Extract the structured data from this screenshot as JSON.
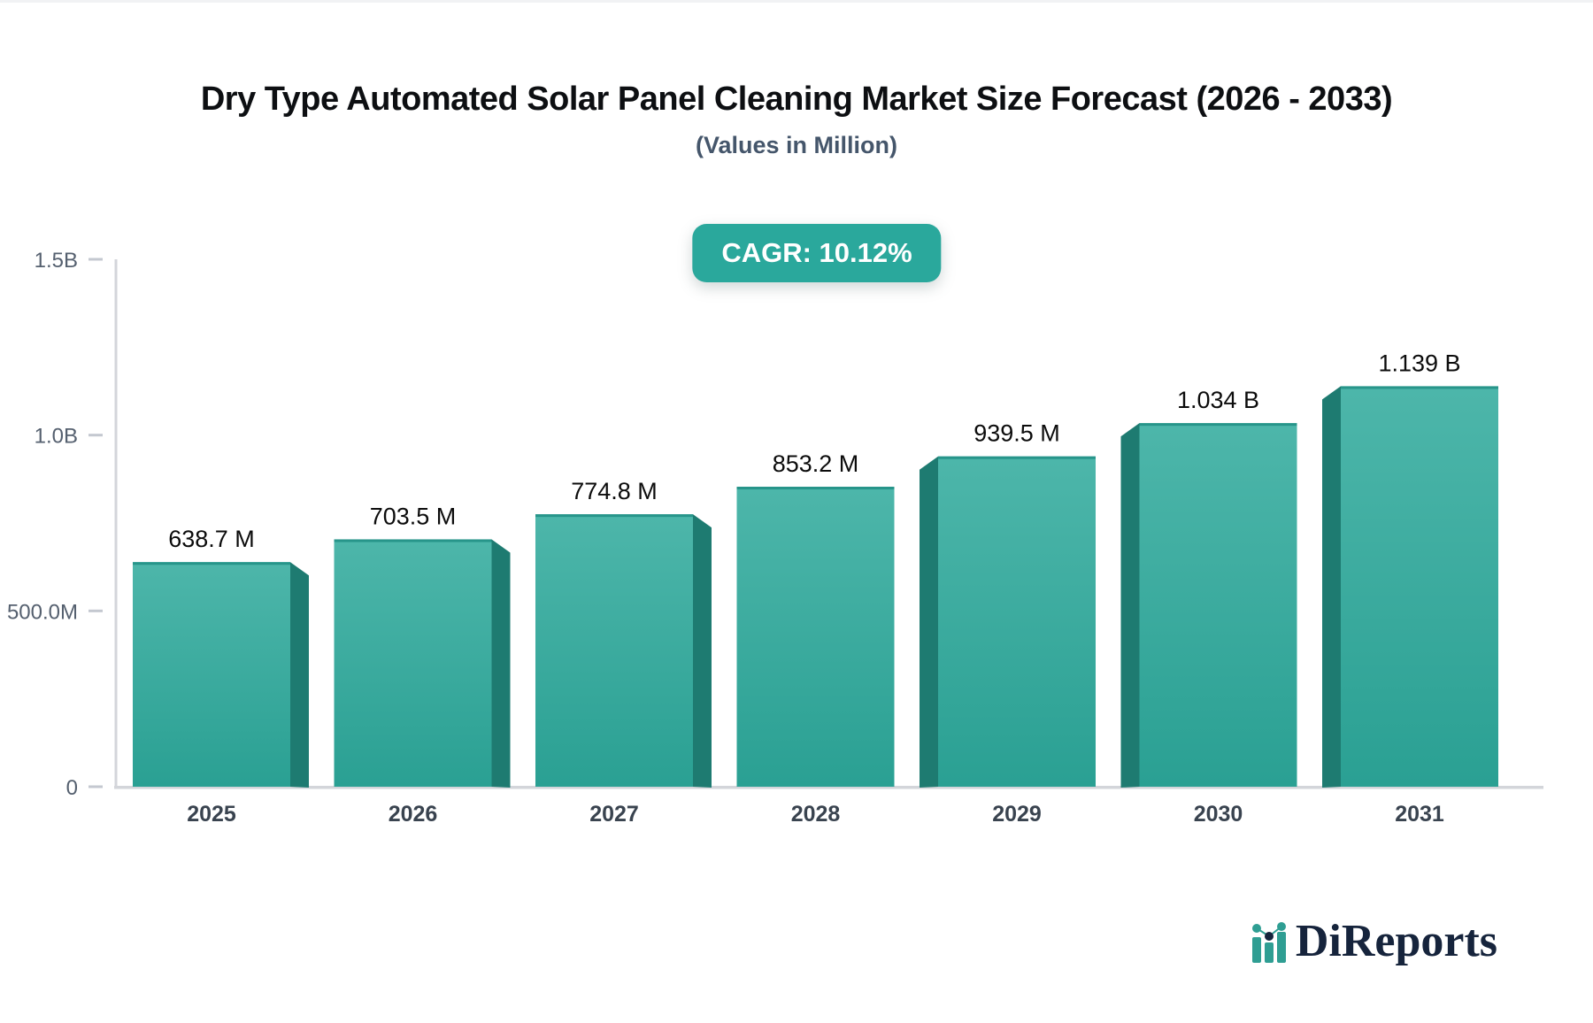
{
  "page": {
    "title": "Dry Type Automated Solar Panel Cleaning Market Size Forecast (2026 - 2033)",
    "subtitle": "(Values in Million)",
    "cagr_badge": "CAGR: 10.12%"
  },
  "chart_data": {
    "type": "bar",
    "title": "Dry Type Automated Solar Panel Cleaning Market Size Forecast (2026 - 2033)",
    "subtitle": "(Values in Million)",
    "cagr_percent": "10.12%",
    "categories": [
      "2025",
      "2026",
      "2027",
      "2028",
      "2029",
      "2030",
      "2031"
    ],
    "values_millions": [
      638.7,
      703.5,
      774.8,
      853.2,
      939.5,
      1034,
      1139
    ],
    "value_labels": [
      "638.7 M",
      "703.5 M",
      "774.8 M",
      "853.2 M",
      "939.5 M",
      "1.034 B",
      "1.139 B"
    ],
    "xlabel": "",
    "ylabel": "",
    "ylim_millions": [
      0,
      1500
    ],
    "y_ticks": [
      {
        "value": 0,
        "label": "0"
      },
      {
        "value": 500,
        "label": "500.0M"
      },
      {
        "value": 1000,
        "label": "1.0B"
      },
      {
        "value": 1500,
        "label": "1.5B"
      }
    ],
    "grid": false,
    "legend": false,
    "colors": {
      "bar_face_top": "#4db6aa",
      "bar_face_bottom": "#2aa093",
      "bar_top_edge": "#27958a",
      "bar_side": "#1e7b71",
      "axis_line": "#d3d5da",
      "tick_mark": "#c4c8d0",
      "badge_background": "#2aa89c",
      "badge_text": "#ffffff"
    }
  },
  "logo": {
    "text": "DiReports",
    "icon": "bar-chart-logo-icon",
    "icon_color": "#2f9e93",
    "text_color": "#16243c"
  }
}
